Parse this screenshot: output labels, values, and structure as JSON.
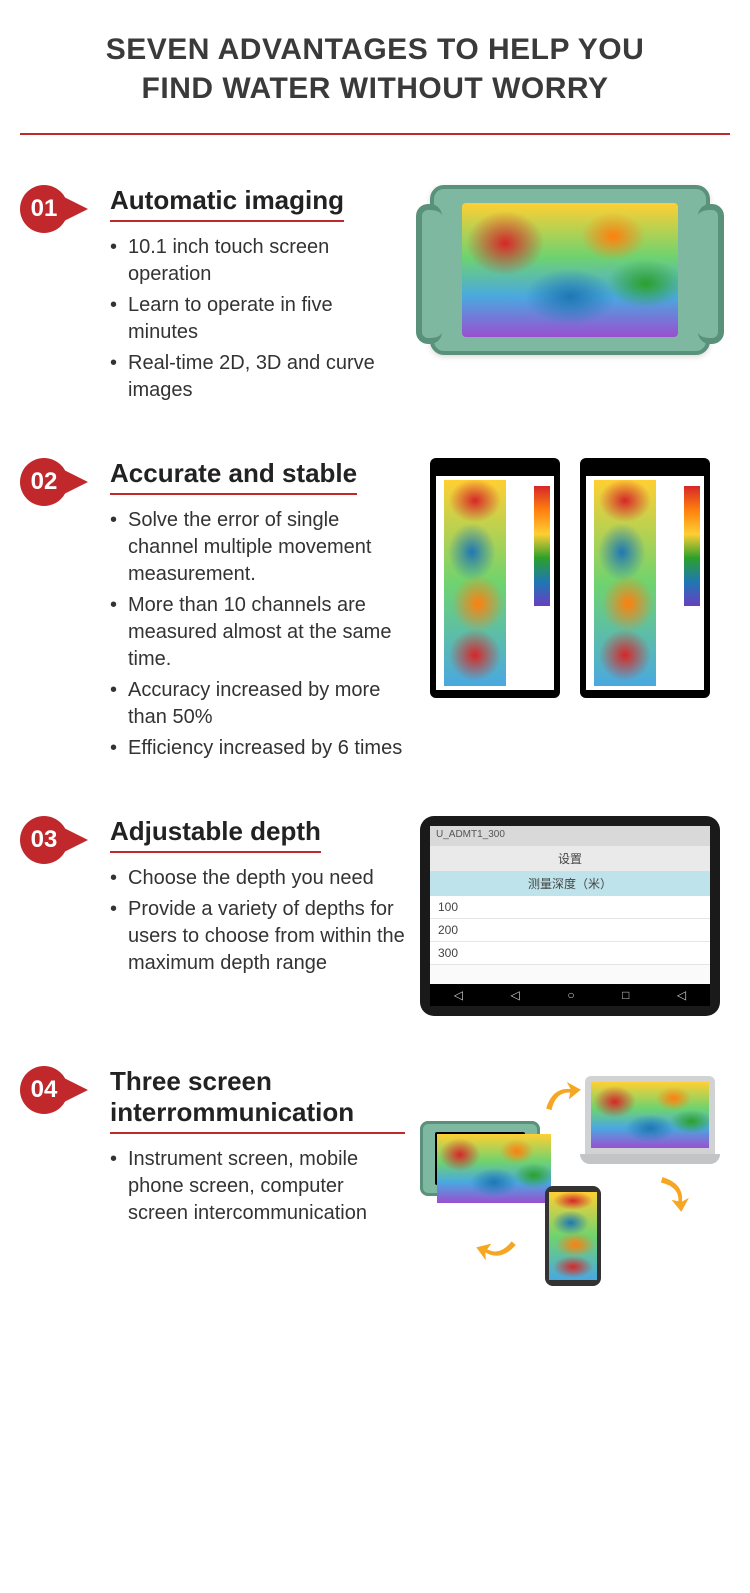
{
  "header": {
    "line1": "SEVEN ADVANTAGES TO HELP YOU",
    "line2": "FIND WATER WITHOUT WORRY"
  },
  "accent_color": "#c0282c",
  "heatmap_palette": [
    "#d62728",
    "#ff7f0e",
    "#ffcf33",
    "#2ca02c",
    "#1f77b4",
    "#6a3fbf"
  ],
  "items": [
    {
      "num": "01",
      "title": "Automatic imaging",
      "bullets": [
        "10.1 inch touch screen operation",
        "Learn to operate in five minutes",
        "Real-time 2D, 3D and curve images"
      ],
      "image": "device"
    },
    {
      "num": "02",
      "title": "Accurate and stable",
      "bullets": [
        "Solve the error of single channel multiple movement measurement.",
        "More than 10 channels are measured almost at the same time.",
        "Accuracy increased by more than 50%",
        "Efficiency increased by 6 times"
      ],
      "image": "phones"
    },
    {
      "num": "03",
      "title": "Adjustable depth",
      "bullets": [
        "Choose the depth you need",
        "Provide a variety of depths for users to choose from within the maximum depth range"
      ],
      "image": "tablet",
      "tablet": {
        "header_left": "U_ADMT1_300",
        "title": "设置",
        "subtitle": "测量深度（米）",
        "rows": [
          "100",
          "200",
          "300"
        ]
      }
    },
    {
      "num": "04",
      "title": "Three screen interrommunication",
      "bullets": [
        "Instrument screen, mobile phone screen, computer screen intercommunication"
      ],
      "image": "tri"
    }
  ]
}
